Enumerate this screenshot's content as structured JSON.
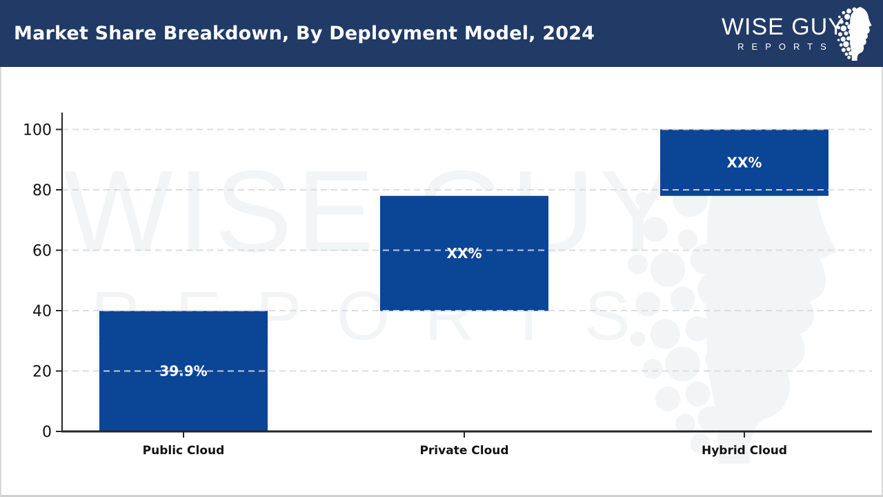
{
  "header": {
    "title": "Market Share Breakdown, By Deployment Model, 2024",
    "logo": {
      "wordmark": "WISE GUY",
      "subtext": "REPORTS"
    }
  },
  "chart_data": {
    "type": "bar",
    "subtype": "waterfall-cumulative",
    "title": "Market Share Breakdown, By Deployment Model, 2024",
    "categories": [
      "Public Cloud",
      "Private Cloud",
      "Hybrid Cloud"
    ],
    "series": [
      {
        "name": "Public Cloud",
        "start": 0,
        "end": 39.9,
        "label": "39.9%"
      },
      {
        "name": "Private Cloud",
        "start": 39.9,
        "end": 78,
        "label": "XX%"
      },
      {
        "name": "Hybrid Cloud",
        "start": 78,
        "end": 100,
        "label": "XX%"
      }
    ],
    "xlabel": "",
    "ylabel": "",
    "ylim": [
      0,
      100
    ],
    "yticks": [
      0,
      20,
      40,
      60,
      80,
      100
    ],
    "grid": "dashed-horizontal",
    "legend": "none",
    "bar_color": "#0b4596",
    "bar_label_color": "#ffffff",
    "grid_color": "#d9d9d9",
    "axis_color": "#262626",
    "tick_label_color": "#111111"
  },
  "colors": {
    "header_bg": "#213a66",
    "accent_blue": "#0b4596",
    "frame_border": "#d9d9d9"
  }
}
